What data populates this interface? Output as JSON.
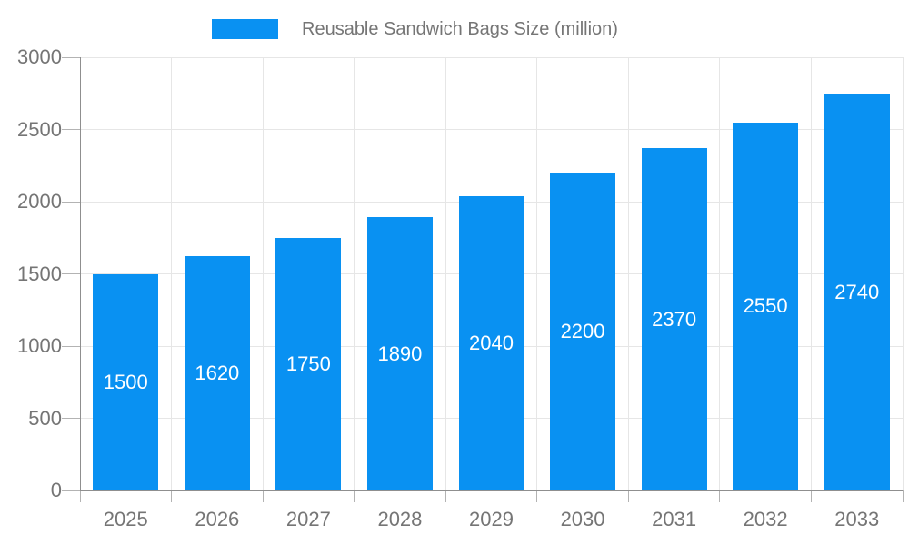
{
  "chart_data": {
    "type": "bar",
    "title": "",
    "legend": {
      "label": "Reusable Sandwich Bags Size (million)",
      "position": "top"
    },
    "categories": [
      "2025",
      "2026",
      "2027",
      "2028",
      "2029",
      "2030",
      "2031",
      "2032",
      "2033"
    ],
    "series": [
      {
        "name": "Reusable Sandwich Bags Size (million)",
        "values": [
          1500,
          1620,
          1750,
          1890,
          2040,
          2200,
          2370,
          2550,
          2740
        ]
      }
    ],
    "bar_value_labels": [
      "1500",
      "1620",
      "1750",
      "1890",
      "2040",
      "2200",
      "2370",
      "2550",
      "2740"
    ],
    "xlabel": "",
    "ylabel": "",
    "ylim": [
      0,
      3000
    ],
    "yticks": [
      0,
      500,
      1000,
      1500,
      2000,
      2500,
      3000
    ],
    "grid": true,
    "colors": {
      "bar": "#0991f2",
      "grid": "#e6e6e6",
      "axis": "#8f8f8f",
      "tick": "#b3b3b3",
      "text": "#757575",
      "bar_label_text": "#ffffff",
      "background": "#ffffff"
    }
  }
}
